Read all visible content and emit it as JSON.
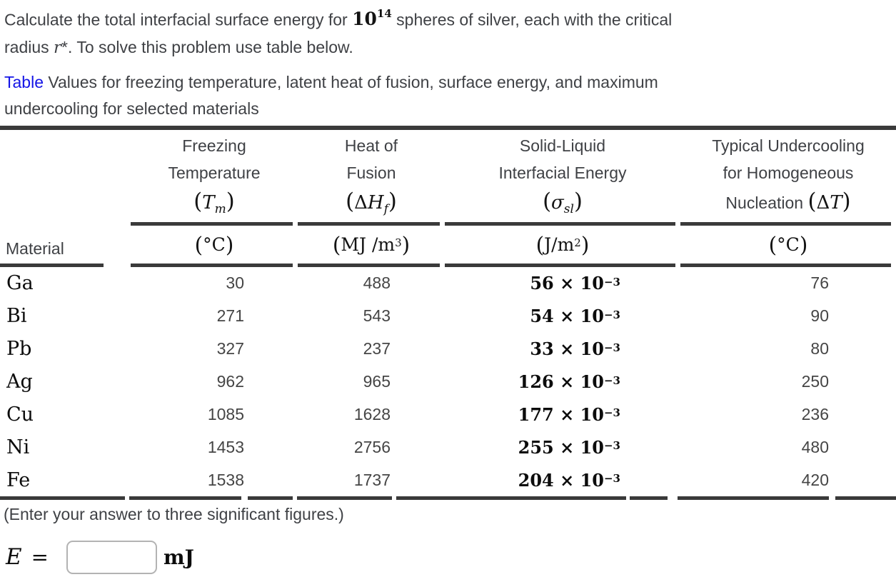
{
  "question": {
    "line1_pre": "Calculate the total interfacial surface energy for ",
    "power_base": "10",
    "power_exponent": "14",
    "line1_post": " spheres of silver, each with the critical",
    "line2_pre": "radius ",
    "radius_var": "r",
    "radius_star": "*",
    "line2_post": ". To solve this problem use table below."
  },
  "caption": {
    "link_label": "Table",
    "line1_rest": " Values for freezing temperature, latent heat of fusion, surface energy, and maximum",
    "line2": "undercooling for selected materials"
  },
  "table": {
    "material_header": "Material",
    "columns": [
      {
        "line1": "Freezing",
        "line2": "Temperature",
        "line3_text": "",
        "sym_open": "(",
        "sym_prefix": "",
        "sym_main": "T",
        "sym_sub": "m",
        "sym_close": ")",
        "unit_open": "(",
        "unit_text": "°C",
        "unit_sup": "",
        "unit_close": ")"
      },
      {
        "line1": "Heat of",
        "line2": "Fusion",
        "line3_text": "",
        "sym_open": "(",
        "sym_prefix": "Δ",
        "sym_main": "H",
        "sym_sub": "f",
        "sym_close": ")",
        "unit_open": "(",
        "unit_text": "MJ /m",
        "unit_sup": "3",
        "unit_close": ")"
      },
      {
        "line1": "Solid-Liquid",
        "line2": "Interfacial Energy",
        "line3_text": "",
        "sym_open": "(",
        "sym_prefix": "",
        "sym_main": "σ",
        "sym_sub": "sl",
        "sym_close": ")",
        "unit_open": "(",
        "unit_text": "J/m",
        "unit_sup": "2",
        "unit_close": ")"
      },
      {
        "line1": "Typical Undercooling",
        "line2": "for Homogeneous",
        "line3_text": "Nucleation ",
        "sym_open": "(",
        "sym_prefix": "Δ",
        "sym_main": "T",
        "sym_sub": "",
        "sym_close": ")",
        "unit_open": "(",
        "unit_text": "°C",
        "unit_sup": "",
        "unit_close": ")"
      }
    ],
    "rows": [
      {
        "material": "Ga",
        "tm": "30",
        "hf": "488",
        "sigma_text": "56 × 10",
        "sigma_sup": "−3",
        "dt": "76"
      },
      {
        "material": "Bi",
        "tm": "271",
        "hf": "543",
        "sigma_text": "54 × 10",
        "sigma_sup": "−3",
        "dt": "90"
      },
      {
        "material": "Pb",
        "tm": "327",
        "hf": "237",
        "sigma_text": "33 × 10",
        "sigma_sup": "−3",
        "dt": "80"
      },
      {
        "material": "Ag",
        "tm": "962",
        "hf": "965",
        "sigma_text": "126 × 10",
        "sigma_sup": "−3",
        "dt": "250"
      },
      {
        "material": "Cu",
        "tm": "1085",
        "hf": "1628",
        "sigma_text": "177 × 10",
        "sigma_sup": "−3",
        "dt": "236"
      },
      {
        "material": "Ni",
        "tm": "1453",
        "hf": "2756",
        "sigma_text": "255 × 10",
        "sigma_sup": "−3",
        "dt": "480"
      },
      {
        "material": "Fe",
        "tm": "1538",
        "hf": "1737",
        "sigma_text": "204 × 10",
        "sigma_sup": "−3",
        "dt": "420"
      }
    ]
  },
  "footer": {
    "note": "(Enter your answer to three significant figures.)",
    "answer_symbol": "E",
    "equals": "=",
    "input_value": "",
    "unit": "mJ"
  },
  "colors": {
    "link_blue": "#1414e6",
    "rule": "#3a3a3a",
    "body_text": "#3f4145",
    "math_text": "#131313"
  }
}
